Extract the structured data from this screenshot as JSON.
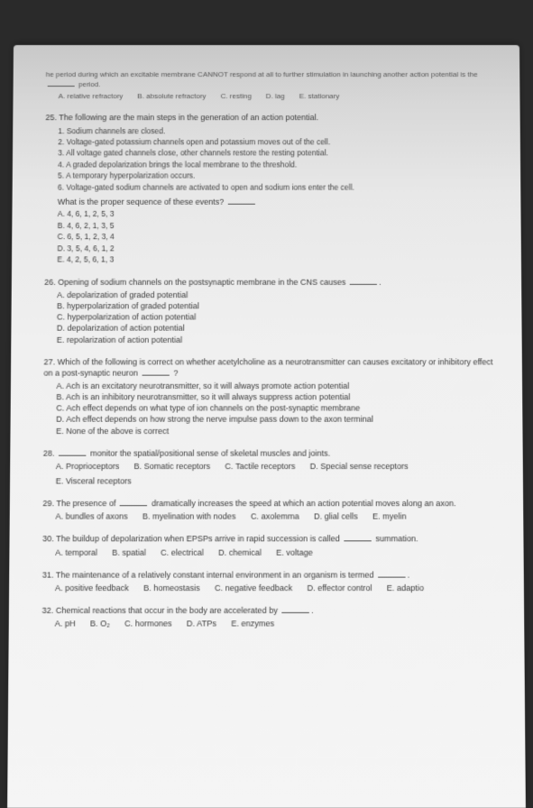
{
  "q24": {
    "text_a": "he period during which an excitable membrane CANNOT respond at all to further stimulation in launching another action potential is the",
    "text_b": "period.",
    "opts": {
      "a": "A. relative refractory",
      "b": "B. absolute refractory",
      "c": "C. resting",
      "d": "D. lag",
      "e": "E. stationary"
    }
  },
  "q25": {
    "text": "25. The following are the main steps in the generation of an action potential.",
    "steps": {
      "s1": "1. Sodium channels are closed.",
      "s2": "2. Voltage-gated potassium channels open and potassium moves out of the cell.",
      "s3": "3. All voltage gated channels close, other channels restore the resting potential.",
      "s4": "4. A graded depolarization brings the local membrane to the threshold.",
      "s5": "5. A temporary hyperpolarization occurs.",
      "s6": "6. Voltage-gated sodium channels are activated to open and sodium ions enter the cell."
    },
    "subq": "What is the proper sequence of these events?",
    "opts": {
      "a": "A. 4, 6, 1, 2, 5, 3",
      "b": "B. 4, 6, 2, 1, 3, 5",
      "c": "C. 6, 5, 1, 2, 3, 4",
      "d": "D. 3, 5, 4, 6, 1, 2",
      "e": "E. 4, 2, 5, 6, 1, 3"
    }
  },
  "q26": {
    "text": "26. Opening of sodium channels on the postsynaptic membrane in the CNS causes",
    "opts": {
      "a": "A. depolarization of graded potential",
      "b": "B. hyperpolarization of graded potential",
      "c": "C. hyperpolarization of action potential",
      "d": "D. depolarization of action potential",
      "e": "E. repolarization of action potential"
    }
  },
  "q27": {
    "text": "27. Which of the following is correct on whether acetylcholine as a neurotransmitter can causes excitatory or inhibitory effect on a post-synaptic neuron",
    "qmark": "?",
    "opts": {
      "a": "A. Ach is an excitatory neurotransmitter, so it will always promote action potential",
      "b": "B. Ach is an inhibitory neurotransmitter, so it will always suppress action potential",
      "c": "C. Ach effect depends on what type of ion channels on the post-synaptic membrane",
      "d": "D. Ach effect depends on how strong the nerve impulse pass down to the axon terminal",
      "e": "E. None of the above is correct"
    }
  },
  "q28": {
    "num": "28.",
    "text": "monitor the spatial/positional sense of skeletal muscles and joints.",
    "opts": {
      "a": "A. Proprioceptors",
      "b": "B. Somatic receptors",
      "c": "C. Tactile receptors",
      "d": "D. Special sense receptors",
      "e": "E. Visceral receptors"
    }
  },
  "q29": {
    "text_a": "29. The presence of",
    "text_b": "dramatically increases the speed at which an action potential moves along an axon.",
    "opts": {
      "a": "A. bundles of axons",
      "b": "B. myelination with nodes",
      "c": "C. axolemma",
      "d": "D. glial cells",
      "e": "E. myelin"
    }
  },
  "q30": {
    "text_a": "30. The buildup of depolarization when EPSPs arrive in rapid succession is called",
    "text_b": "summation.",
    "opts": {
      "a": "A. temporal",
      "b": "B. spatial",
      "c": "C. electrical",
      "d": "D. chemical",
      "e": "E. voltage"
    }
  },
  "q31": {
    "text": "31. The maintenance of a relatively constant internal environment in an organism is termed",
    "opts": {
      "a": "A. positive feedback",
      "b": "B. homeostasis",
      "c": "C. negative feedback",
      "d": "D. effector control",
      "e": "E. adaptio"
    }
  },
  "q32": {
    "text": "32. Chemical reactions that occur in the body are accelerated by",
    "opts": {
      "a": "A. pH",
      "b": "B. O₂",
      "c": "C. hormones",
      "d": "D. ATPs",
      "e": "E. enzymes"
    }
  }
}
